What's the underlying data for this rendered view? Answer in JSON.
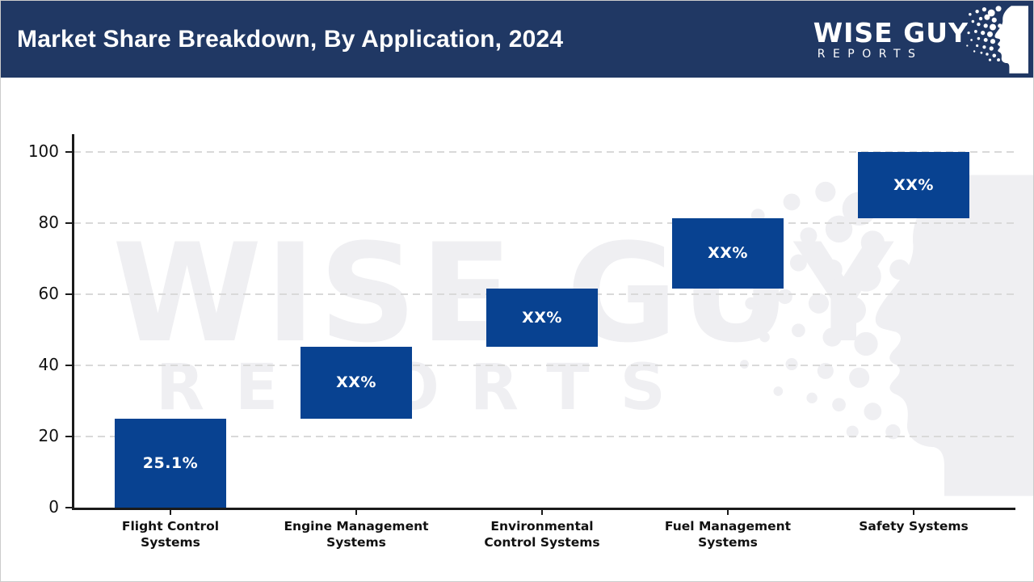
{
  "header": {
    "title": "Market Share Breakdown, By Application, 2024",
    "logo": {
      "name": "WISE GUY",
      "sub": "REPORTS"
    }
  },
  "watermark": {
    "name": "WISE GUY",
    "sub": "REPORTS"
  },
  "colors": {
    "header_bg": "#203864",
    "bar": "#084291",
    "grid": "#d9d9d9",
    "axis": "#1a1a1a",
    "watermark": "#efeff2",
    "bar_label": "#ffffff",
    "title_text": "#ffffff"
  },
  "chart_data": {
    "type": "bar",
    "subtype": "floating-waterfall",
    "title": "Market Share Breakdown, By Application, 2024",
    "xlabel": "",
    "ylabel": "",
    "ylim": [
      0,
      105
    ],
    "yticks": [
      0,
      20,
      40,
      60,
      80,
      100
    ],
    "grid": "horizontal-dashed",
    "legend": "none",
    "bars": [
      {
        "category": "Flight Control Systems",
        "category_lines": [
          "Flight Control",
          "Systems"
        ],
        "start": 0,
        "end": 25.1,
        "label": "25.1%"
      },
      {
        "category": "Engine Management Systems",
        "category_lines": [
          "Engine Management",
          "Systems"
        ],
        "start": 25.1,
        "end": 45.2,
        "label": "XX%"
      },
      {
        "category": "Environmental Control Systems",
        "category_lines": [
          "Environmental",
          "Control Systems"
        ],
        "start": 45.2,
        "end": 61.6,
        "label": "XX%"
      },
      {
        "category": "Fuel Management Systems",
        "category_lines": [
          "Fuel Management",
          "Systems"
        ],
        "start": 61.6,
        "end": 81.4,
        "label": "XX%"
      },
      {
        "category": "Safety Systems",
        "category_lines": [
          "Safety Systems"
        ],
        "start": 81.4,
        "end": 100,
        "label": "XX%"
      }
    ]
  }
}
